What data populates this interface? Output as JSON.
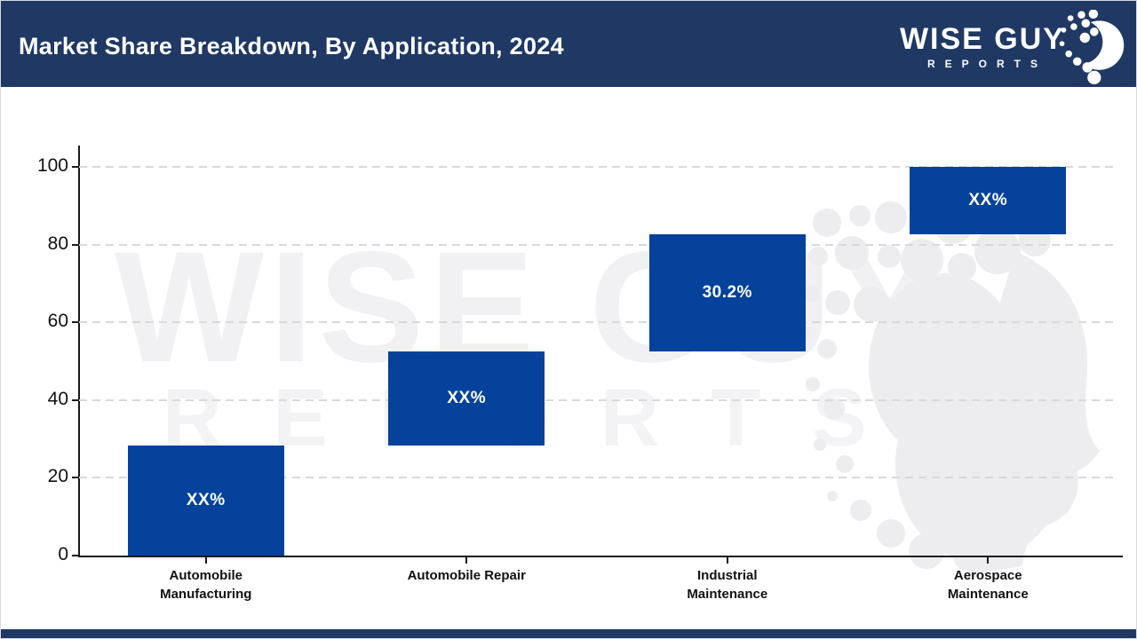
{
  "header": {
    "title": "Market Share Breakdown, By Application, 2024",
    "logo_primary": "WISE GUY",
    "logo_secondary": "REPORTS"
  },
  "watermark": {
    "primary": "WISE GUY",
    "secondary": "REPORTS"
  },
  "colors": {
    "header_bg": "#1f3864",
    "bar": "#05429b",
    "bar_label": "#ffffff",
    "gridline": "#d9d9d9",
    "watermark": "#f1f1f3",
    "axis": "#1a1a1a"
  },
  "chart_data": {
    "type": "bar",
    "subtype": "waterfall",
    "title": "Market Share Breakdown, By Application, 2024",
    "categories": [
      "Automobile Manufacturing",
      "Automobile Repair",
      "Industrial Maintenance",
      "Aerospace Maintenance"
    ],
    "segments": [
      {
        "category": "Automobile Manufacturing",
        "label": "XX%",
        "start": 0,
        "end": 28.4
      },
      {
        "category": "Automobile Repair",
        "label": "XX%",
        "start": 28.4,
        "end": 52.5
      },
      {
        "category": "Industrial Maintenance",
        "label": "30.2%",
        "start": 52.5,
        "end": 82.7
      },
      {
        "category": "Aerospace Maintenance",
        "label": "XX%",
        "start": 82.7,
        "end": 100
      }
    ],
    "ylim": [
      0,
      100
    ],
    "yticks": [
      0,
      20,
      40,
      60,
      80,
      100
    ],
    "xlabel": "",
    "ylabel": "",
    "grid": "horizontal-dashed",
    "legend": "none"
  }
}
